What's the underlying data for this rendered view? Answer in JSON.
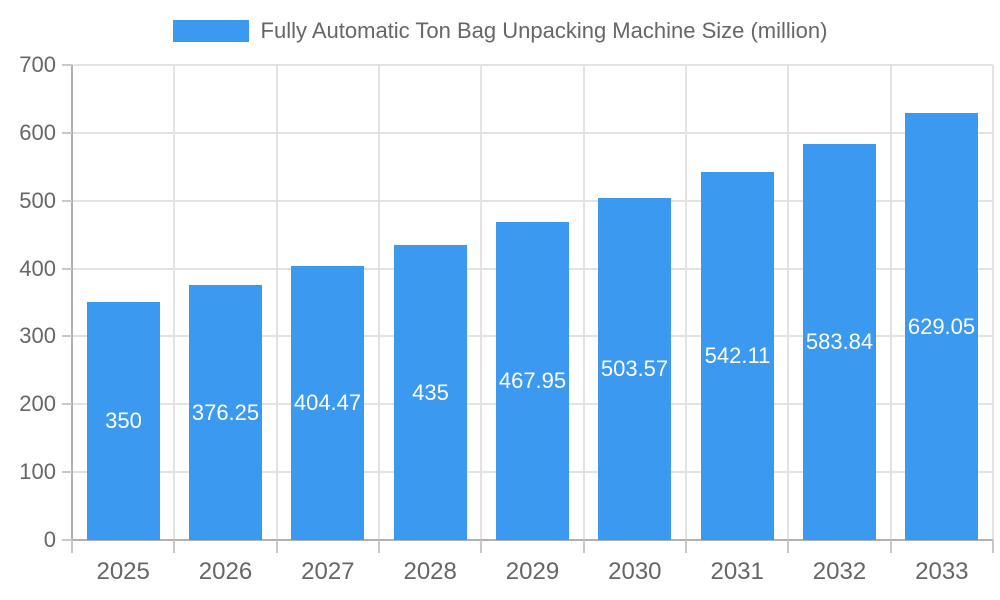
{
  "legend": {
    "label": "Fully Automatic Ton Bag Unpacking Machine Size (million)"
  },
  "chart_data": {
    "type": "bar",
    "title": "Fully Automatic Ton Bag Unpacking Machine Size (million)",
    "categories": [
      "2025",
      "2026",
      "2027",
      "2028",
      "2029",
      "2030",
      "2031",
      "2032",
      "2033"
    ],
    "values": [
      350,
      376.25,
      404.47,
      435,
      467.95,
      503.57,
      542.11,
      583.84,
      629.05
    ],
    "value_labels": [
      "350",
      "376.25",
      "404.47",
      "435",
      "467.95",
      "503.57",
      "542.11",
      "583.84",
      "629.05"
    ],
    "xlabel": "",
    "ylabel": "",
    "ylim": [
      0,
      700
    ],
    "y_ticks": [
      0,
      100,
      200,
      300,
      400,
      500,
      600,
      700
    ],
    "y_tick_labels": [
      "0",
      "100",
      "200",
      "300",
      "400",
      "500",
      "600",
      "700"
    ],
    "grid": true,
    "legend_position": "top",
    "bar_label_position": "inside-center"
  },
  "colors": {
    "bar": "#3B99EF",
    "grid_line": "#e3e3e3",
    "axis_line": "#b0b0b0",
    "tick_mark": "#c8c8c8",
    "tick_text": "#666666",
    "legend_text": "#666666",
    "bar_label": "#ffffff",
    "background": "#ffffff"
  }
}
